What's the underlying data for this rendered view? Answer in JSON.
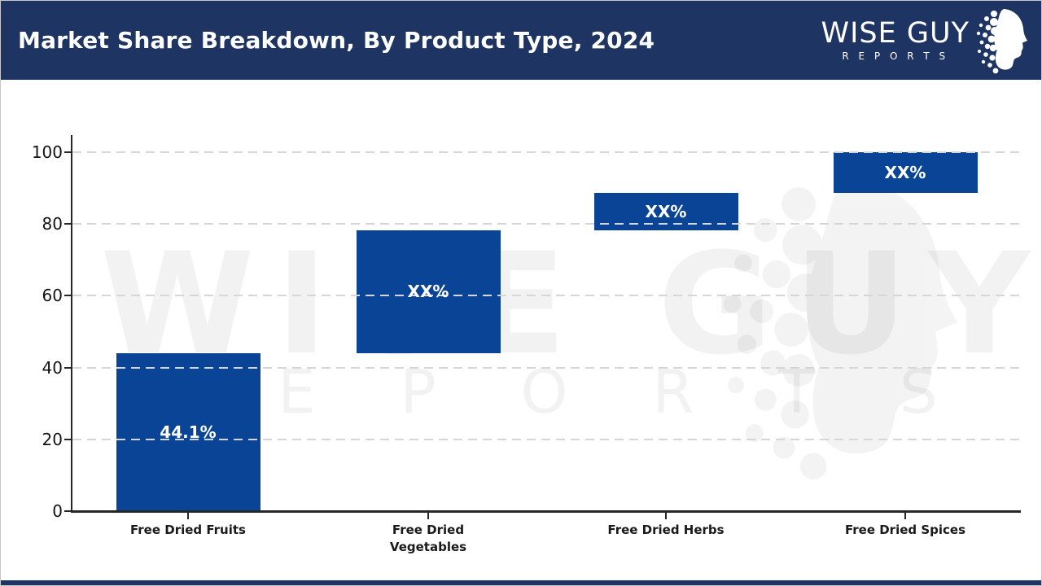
{
  "header": {
    "title": "Market Share Breakdown, By Product Type, 2024",
    "bg_color": "#1e3463",
    "logo": {
      "line1": "WISE GUY",
      "line2": "R E P O R T S"
    }
  },
  "watermark": {
    "line1": "WISE GUY",
    "line2": "R E P O R T S"
  },
  "chart_data": {
    "type": "bar",
    "subtype": "waterfall",
    "title": "Market Share Breakdown, By Product Type, 2024",
    "categories": [
      "Free Dried Fruits",
      "Free Dried Vegetables",
      "Free Dried Herbs",
      "Free Dried Spices"
    ],
    "category_lines": [
      [
        "Free Dried Fruits"
      ],
      [
        "Free Dried",
        "Vegetables"
      ],
      [
        "Free Dried Herbs"
      ],
      [
        "Free Dried Spices"
      ]
    ],
    "segments": [
      {
        "category": "Free Dried Fruits",
        "start": 0,
        "end": 44.1,
        "label": "44.1%"
      },
      {
        "category": "Free Dried Vegetables",
        "start": 44.1,
        "end": 78.2,
        "label": "XX%"
      },
      {
        "category": "Free Dried Herbs",
        "start": 78.2,
        "end": 88.7,
        "label": "XX%"
      },
      {
        "category": "Free Dried Spices",
        "start": 88.7,
        "end": 100,
        "label": "XX%"
      }
    ],
    "ylabel": "",
    "xlabel": "",
    "yticks": [
      0,
      20,
      40,
      60,
      80,
      100
    ],
    "ylim": [
      0,
      105
    ],
    "grid": "horizontal-dashed",
    "legend": "none",
    "bar_color": "#0a4496",
    "bar_label_color": "#ffffff"
  }
}
